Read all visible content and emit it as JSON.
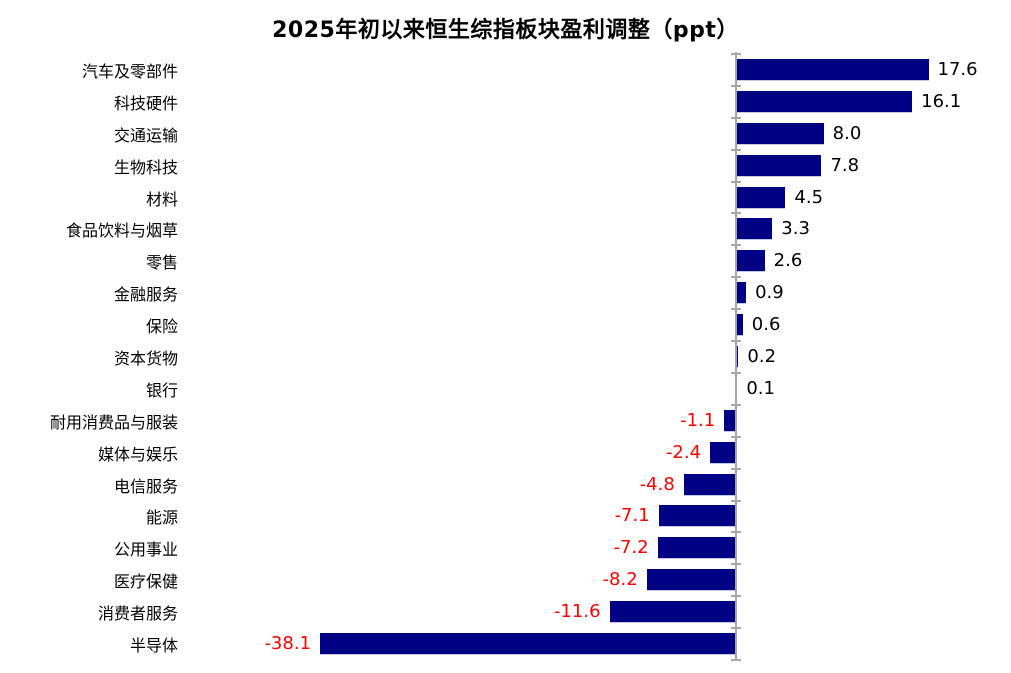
{
  "title": "2025年初以来恒生综指板块盈利调整（ppt）",
  "colors": {
    "bar": "#000084",
    "positive_label": "#000000",
    "negative_label": "#ff0000",
    "axis": "#a6a6a6",
    "title": "#000000"
  },
  "chart_data": {
    "type": "bar",
    "orientation": "horizontal",
    "title": "2025年初以来恒生综指板块盈利调整（ppt）",
    "xlabel": "",
    "ylabel": "",
    "unit": "ppt",
    "grid": false,
    "legend": false,
    "value_labels": "one-decimal, black for positive (right of bar), red for negative (left of bar)",
    "xlim": [
      -50,
      24.6
    ],
    "categories": [
      "汽车及零部件",
      "科技硬件",
      "交通运输",
      "生物科技",
      "材料",
      "食品饮料与烟草",
      "零售",
      "金融服务",
      "保险",
      "资本货物",
      "银行",
      "耐用消费品与服装",
      "媒体与娱乐",
      "电信服务",
      "能源",
      "公用事业",
      "医疗保健",
      "消费者服务",
      "半导体"
    ],
    "values": [
      17.6,
      16.1,
      8.0,
      7.8,
      4.5,
      3.3,
      2.6,
      0.9,
      0.6,
      0.2,
      0.1,
      -1.1,
      -2.4,
      -4.8,
      -7.1,
      -7.2,
      -8.2,
      -11.6,
      -38.1
    ]
  }
}
